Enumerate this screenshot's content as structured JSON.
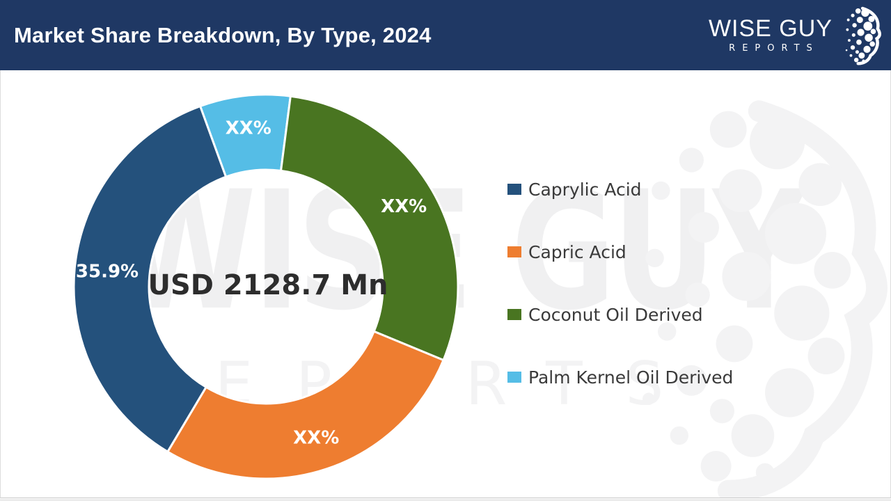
{
  "header": {
    "title": "Market Share Breakdown, By Type, 2024",
    "bg_color": "#1f3864",
    "logo": {
      "line1": "WISE GUY",
      "line2": "REPORTS"
    }
  },
  "watermark": {
    "line1": "WISE GUY",
    "line2": "REPORTS"
  },
  "chart_data": {
    "type": "pie",
    "donut": true,
    "title": "Market Share Breakdown, By Type, 2024",
    "center_label": "USD 2128.7 Mn",
    "units": "percent share of market",
    "start_angle_deg_clockwise_from_north": 340,
    "outer_radius_px": 276,
    "inner_radius_px": 168,
    "label_radius_px": 229,
    "slices": [
      {
        "label": "Palm Kernel Oil Derived",
        "value_pct": 7.6,
        "display_label": "XX%",
        "color": "#55bde6"
      },
      {
        "label": "Coconut Oil Derived",
        "value_pct": 29.2,
        "display_label": "XX%",
        "color": "#497521"
      },
      {
        "label": "Capric Acid",
        "value_pct": 27.3,
        "display_label": "XX%",
        "color": "#ee7d30"
      },
      {
        "label": "Caprylic Acid",
        "value_pct": 35.9,
        "display_label": "35.9%",
        "color": "#24517c"
      }
    ],
    "legend_position": "right"
  },
  "legend": {
    "items": [
      {
        "label": "Caprylic Acid",
        "color": "#24517c"
      },
      {
        "label": "Capric Acid",
        "color": "#ee7d30"
      },
      {
        "label": "Coconut Oil Derived",
        "color": "#497521"
      },
      {
        "label": "Palm Kernel Oil Derived",
        "color": "#55bde6"
      }
    ]
  }
}
